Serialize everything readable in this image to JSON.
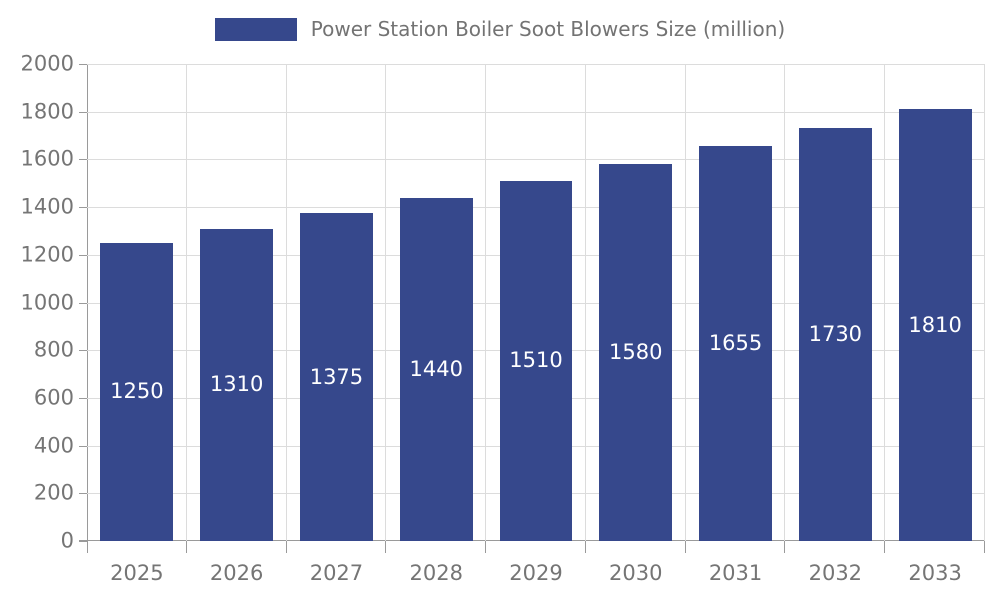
{
  "chart_data": {
    "type": "bar",
    "title": "Power Station Boiler Soot Blowers Size (million)",
    "categories": [
      "2025",
      "2026",
      "2027",
      "2028",
      "2029",
      "2030",
      "2031",
      "2032",
      "2033"
    ],
    "values": [
      1250,
      1310,
      1375,
      1440,
      1510,
      1580,
      1655,
      1730,
      1810
    ],
    "xlabel": "",
    "ylabel": "",
    "ylim": [
      0,
      2000
    ],
    "ytick_step": 200,
    "ytick_labels": [
      "0",
      "200",
      "400",
      "600",
      "800",
      "1000",
      "1200",
      "1400",
      "1600",
      "1800",
      "2000"
    ],
    "grid": true,
    "legend_position": "top",
    "bar_labels_visible": true,
    "bar_label_position": "center"
  },
  "colors": {
    "accent": "#36488C",
    "grid": "#DCDCDC",
    "axis": "#9A9A9A",
    "text": "#757575",
    "title_text": "#737373",
    "bar_label": "#FFFFFF",
    "background": "#FFFFFF"
  }
}
